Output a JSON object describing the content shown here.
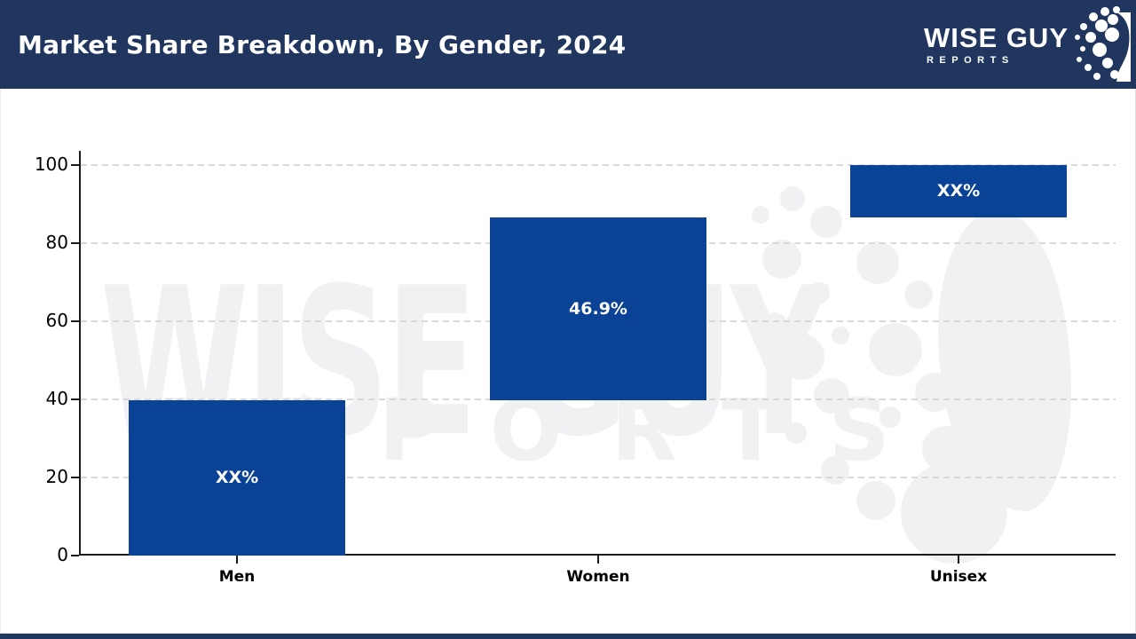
{
  "header": {
    "title": "Market Share Breakdown, By Gender, 2024",
    "logo": {
      "name": "WISE GUY",
      "sub": "REPORTS"
    }
  },
  "watermark": {
    "line1": "WISE GUY",
    "line2": "REPORTS"
  },
  "colors": {
    "header_bg": "#21365F",
    "footer_bg": "#21365F",
    "bar_fill": "#0A4296",
    "bar_label_text": "#FFFFFF",
    "grid_line": "#D9D9D9",
    "axis_line": "#1A1A1A",
    "tick_label_text": "#000000",
    "watermark": "#F1F1F3"
  },
  "chart_data": {
    "type": "bar",
    "variant": "floating-waterfall-columns",
    "title": "Market Share Breakdown, By Gender, 2024",
    "categories": [
      "Men",
      "Women",
      "Unisex"
    ],
    "bars": [
      {
        "category": "Men",
        "start": 0,
        "end": 39.8,
        "label": "XX%"
      },
      {
        "category": "Women",
        "start": 39.8,
        "end": 86.7,
        "label": "46.9%"
      },
      {
        "category": "Unisex",
        "start": 86.7,
        "end": 100,
        "label": "XX%"
      }
    ],
    "xlabel": "",
    "ylabel": "",
    "ylim": [
      0,
      100
    ],
    "yticks": [
      0,
      20,
      40,
      60,
      80,
      100
    ],
    "grid": "horizontal-dashed",
    "legend_position": "none"
  }
}
